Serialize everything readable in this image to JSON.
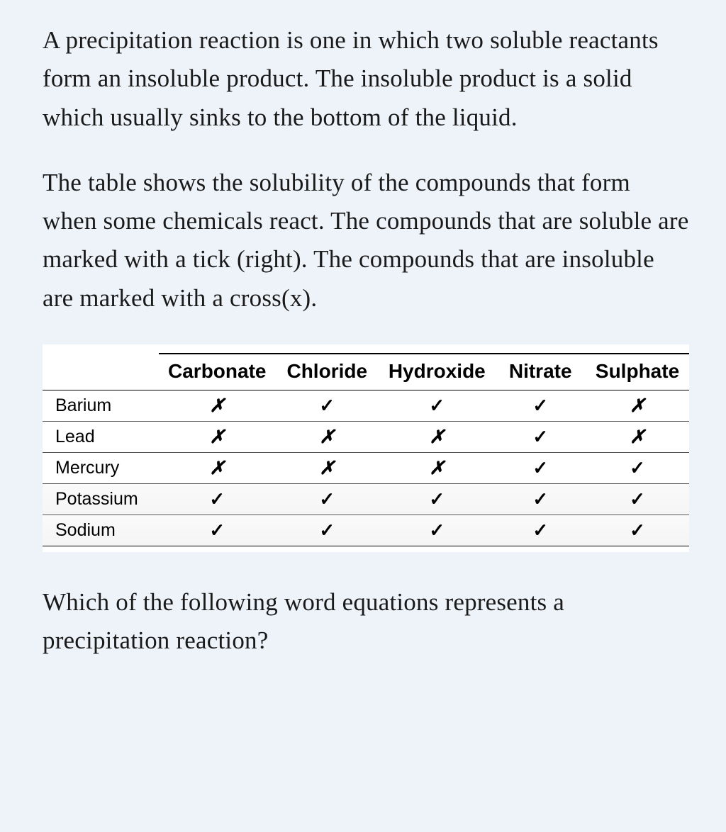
{
  "paragraphs": {
    "p1": "A precipitation reaction is one in which two soluble reactants form an insoluble product. The insoluble product is a solid which usually sinks to the bottom of the liquid.",
    "p2": "The table shows the solubility of the compounds that form when some chemicals react. The compounds that are soluble are marked with a tick (right). The compounds that are insoluble are marked with a cross(x)."
  },
  "table": {
    "columns": [
      "",
      "Carbonate",
      "Chloride",
      "Hydroxide",
      "Nitrate",
      "Sulphate"
    ],
    "column_widths_pct": [
      18,
      18,
      16,
      18,
      14,
      16
    ],
    "header_fontsize": 28,
    "cell_fontsize": 26,
    "rowlabel_fontsize": 25,
    "border_color": "#000000",
    "background_color": "#ffffff",
    "tick_glyph": "✓",
    "cross_glyph": "✗",
    "rows": [
      {
        "label": "Barium",
        "cells": [
          "cross",
          "tick",
          "tick",
          "tick",
          "cross"
        ]
      },
      {
        "label": "Lead",
        "cells": [
          "cross",
          "cross",
          "cross",
          "tick",
          "cross"
        ]
      },
      {
        "label": "Mercury",
        "cells": [
          "cross",
          "cross",
          "cross",
          "tick",
          "tick"
        ]
      },
      {
        "label": "Potassium",
        "cells": [
          "tick",
          "tick",
          "tick",
          "tick",
          "tick"
        ]
      },
      {
        "label": "Sodium",
        "cells": [
          "tick",
          "tick",
          "tick",
          "tick",
          "tick"
        ]
      }
    ]
  },
  "question": "Which of the following word equations represents a precipitation reaction?",
  "colors": {
    "page_background": "#eef2f9",
    "text": "#1a1a1a",
    "table_text": "#000000"
  },
  "typography": {
    "body_font": "Georgia, serif",
    "body_fontsize": 35,
    "body_lineheight": 1.55,
    "table_font": "Arial, sans-serif"
  }
}
